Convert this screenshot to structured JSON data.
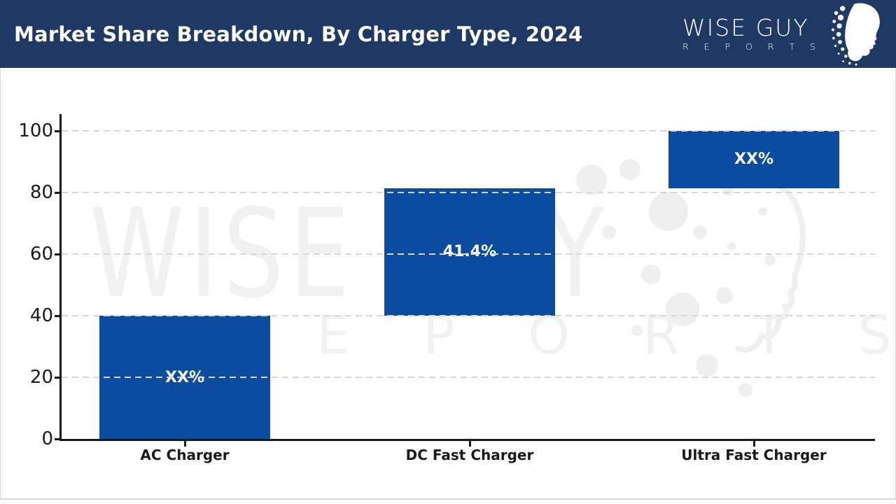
{
  "header": {
    "title": "Market Share Breakdown, By Charger Type, 2024",
    "logo": {
      "line1": "WISE GUY",
      "line2": "R E P O R T S"
    }
  },
  "watermark": {
    "line1": "WISE GUY",
    "line2": "R E P O R T S"
  },
  "chart_data": {
    "type": "bar",
    "subtype": "floating-waterfall",
    "title": "Market Share Breakdown, By Charger Type, 2024",
    "categories": [
      "AC Charger",
      "DC Fast Charger",
      "Ultra Fast Charger"
    ],
    "segments": [
      {
        "category": "AC Charger",
        "start": 0,
        "end": 40,
        "label": "XX%"
      },
      {
        "category": "DC Fast Charger",
        "start": 40,
        "end": 81.4,
        "label": "41.4%"
      },
      {
        "category": "Ultra Fast Charger",
        "start": 81.4,
        "end": 100,
        "label": "XX%"
      }
    ],
    "values": [
      40,
      41.4,
      18.6
    ],
    "xlabel": "",
    "ylabel": "",
    "ylim": [
      0,
      100
    ],
    "yticks": [
      0,
      20,
      40,
      60,
      80,
      100
    ],
    "grid": "horizontal dashed, drawn over bars",
    "legend": "none",
    "bar_color": "#0B4CA0",
    "bar_label_color": "#FFFFFF"
  },
  "colors": {
    "header_bg": "#1F3864",
    "bar_blue": "#0B4CA0",
    "grid_gray": "#D8D8D8",
    "axis_dark": "#1A1A1A",
    "watermark_gray": "#F1F1F1",
    "card_border": "#DCDCDC",
    "text_white": "#FFFFFF",
    "text_dark": "#1A1A1A"
  }
}
